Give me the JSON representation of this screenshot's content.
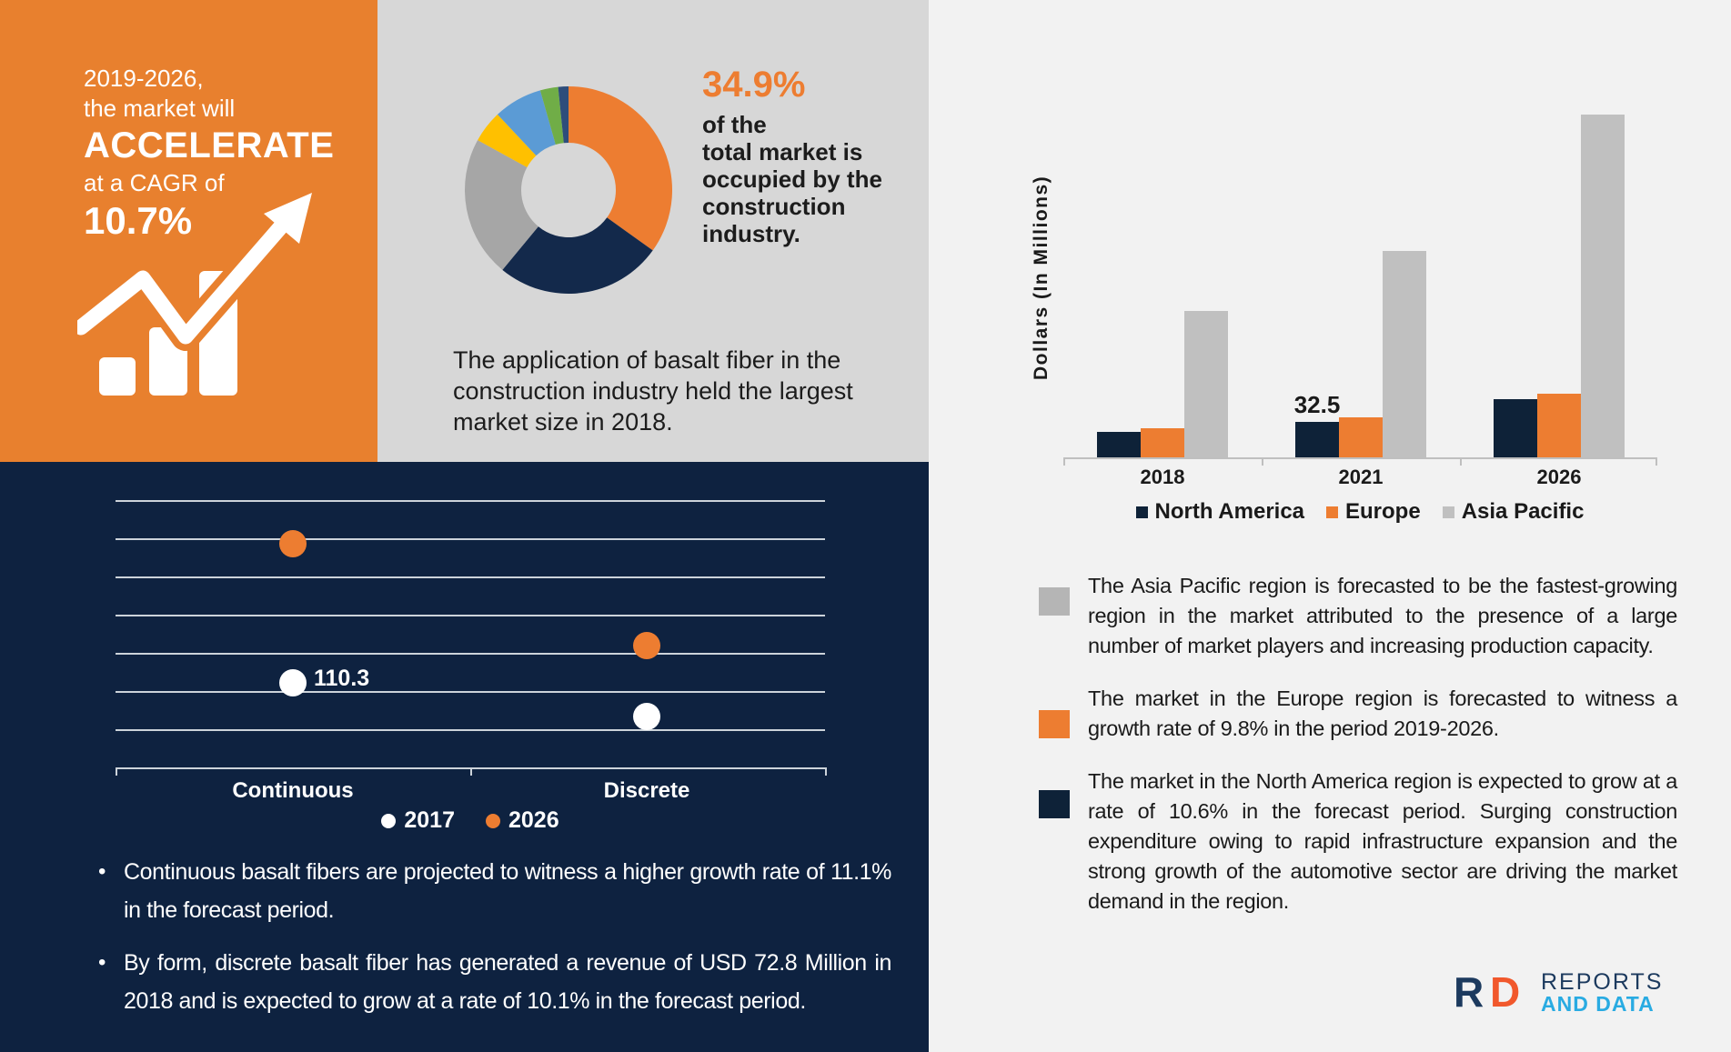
{
  "colors": {
    "panel_orange": "#E8802E",
    "panel_gray": "#D7D7D7",
    "panel_navy": "#0E2240",
    "panel_light": "#F2F2F2",
    "accent_orange": "#ED7D31",
    "accent_navy": "#0E2238",
    "accent_gray": "#C0C0C0",
    "logo_navy": "#1C3A5E",
    "logo_orange": "#F1582C",
    "logo_cyan": "#29ABE2"
  },
  "accelerate_panel": {
    "lines": [
      "2019-2026,",
      "the market will",
      "ACCELERATE",
      "at a CAGR of",
      "10.7%"
    ]
  },
  "donut_panel": {
    "stat_value": "34.9%",
    "stat_lines": [
      "of the",
      "total market is",
      "occupied by the",
      "construction",
      "industry."
    ],
    "caption": "The application of  basalt fiber in the construction industry held the largest market size in 2018."
  },
  "form_panel": {
    "value_label": "110.3",
    "bullets": [
      "Continuous basalt fibers are projected to witness a higher growth rate of 11.1% in the forecast period.",
      "By form, discrete basalt fiber has generated a revenue of USD 72.8 Million in 2018 and is expected to grow at a rate of 10.1% in the forecast period."
    ]
  },
  "region_panel": {
    "ylabel": "Dollars (In Millions)",
    "data_label": "32.5",
    "paragraphs": [
      {
        "marker_color": "#B5B5B5",
        "text": "The Asia Pacific region is forecasted to be the fastest-growing region in the market attributed to the presence of a large number of market players and increasing production capacity."
      },
      {
        "marker_color": "#ED7D31",
        "text": "The market in the Europe region is forecasted to witness a growth rate of 9.8% in the period 2019-2026."
      },
      {
        "marker_color": "#0E2238",
        "text": "The market in the North America region is expected to grow at a rate of 10.6% in the forecast period. Surging construction expenditure owing to rapid infrastructure expansion and the strong growth of the automotive sector are driving the market demand in the region."
      }
    ],
    "logo": {
      "line1": "REPORTS",
      "line2": "AND DATA"
    }
  },
  "chart_data": [
    {
      "id": "application-donut",
      "type": "pie",
      "title": "Share of total market by application, 2018",
      "hole_ratio": 0.46,
      "segments": [
        {
          "label": "Construction industry",
          "value": 34.9,
          "color": "#ED7D31"
        },
        {
          "label": "",
          "value": 26.1,
          "color": "#13294B"
        },
        {
          "label": "",
          "value": 22.0,
          "color": "#A6A6A6"
        },
        {
          "label": "",
          "value": 5.0,
          "color": "#FFC000"
        },
        {
          "label": "",
          "value": 7.6,
          "color": "#5B9BD5"
        },
        {
          "label": "",
          "value": 2.8,
          "color": "#70AD47"
        },
        {
          "label": "",
          "value": 1.6,
          "color": "#2E4D7B"
        }
      ]
    },
    {
      "id": "form-dotplot",
      "type": "scatter",
      "categories": [
        "Continuous",
        "Discrete"
      ],
      "series": [
        {
          "name": "2017",
          "color": "#FFFFFF",
          "values": [
            110.3,
            67
          ]
        },
        {
          "name": "2026",
          "color": "#ED7D31",
          "values": [
            293,
            160
          ]
        }
      ],
      "annotation": {
        "series": "2017",
        "category": "Continuous",
        "text": "110.3"
      },
      "ylim": [
        0,
        375
      ],
      "grid_values": [
        350,
        300,
        250,
        200,
        150,
        100,
        50
      ],
      "legend_position": "bottom",
      "grid": "horizontal"
    },
    {
      "id": "region-bars",
      "type": "bar",
      "categories": [
        "2018",
        "2021",
        "2026"
      ],
      "series": [
        {
          "name": "North America",
          "color": "#0E2238",
          "values": [
            23,
            32.5,
            53
          ]
        },
        {
          "name": "Europe",
          "color": "#ED7D31",
          "values": [
            27,
            37,
            58
          ]
        },
        {
          "name": "Asia Pacific",
          "color": "#C0C0C0",
          "values": [
            134,
            189,
            314
          ]
        }
      ],
      "ylabel": "Dollars (In Millions)",
      "ylim": [
        0,
        320
      ],
      "data_labels": [
        {
          "category": "2021",
          "series": "North America",
          "text": "32.5"
        }
      ],
      "legend_position": "bottom",
      "grid": "off"
    }
  ]
}
